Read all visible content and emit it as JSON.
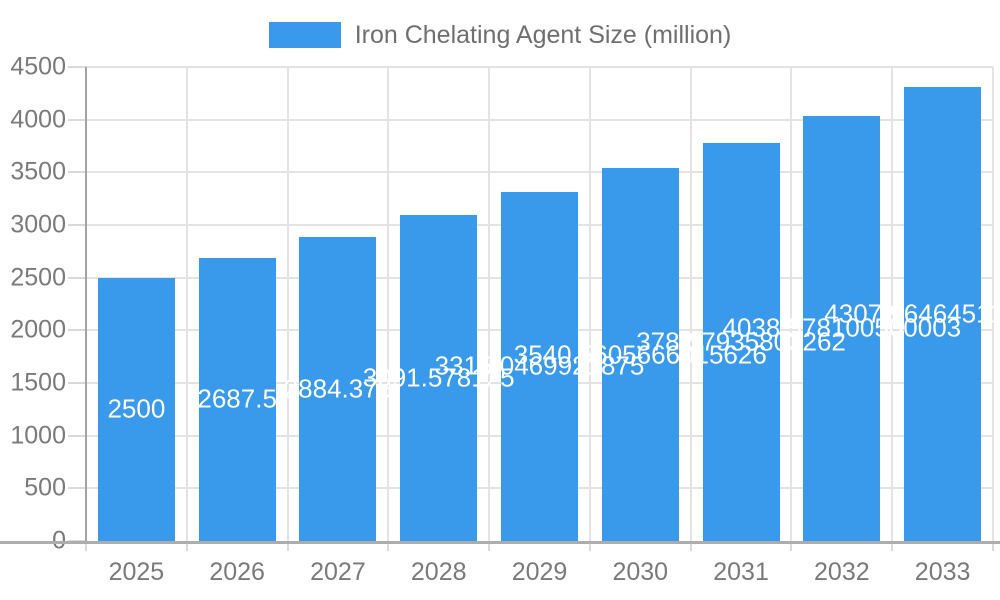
{
  "legend": {
    "label": "Iron Chelating Agent Size (million)"
  },
  "chart_data": {
    "type": "bar",
    "title": "Iron Chelating Agent Size (million)",
    "categories": [
      "2025",
      "2026",
      "2027",
      "2028",
      "2029",
      "2030",
      "2031",
      "2032",
      "2033"
    ],
    "values": [
      2500,
      2687.5,
      2884.375,
      3091.578125,
      3315.0469921875,
      3540.5605666015626,
      3782.7935803262,
      4038.578100500003,
      4307.964645110003
    ],
    "value_labels": [
      "2500",
      "2687.5",
      "2884.375",
      "3091.578125",
      "3315.0469921875",
      "3540.5605666015626",
      "3782.7935803262",
      "4038.578100500003",
      "4307.964645110003"
    ],
    "xlabel": "",
    "ylabel": "",
    "ylim": [
      0,
      4500
    ],
    "ytick_step": 500,
    "grid": true,
    "legend_position": "top",
    "bar_color": "#3999EB",
    "value_label_color": "#FFFFFF",
    "axis_text_color": "#7A7A7A",
    "gridline_color": "#E3E3E3"
  }
}
